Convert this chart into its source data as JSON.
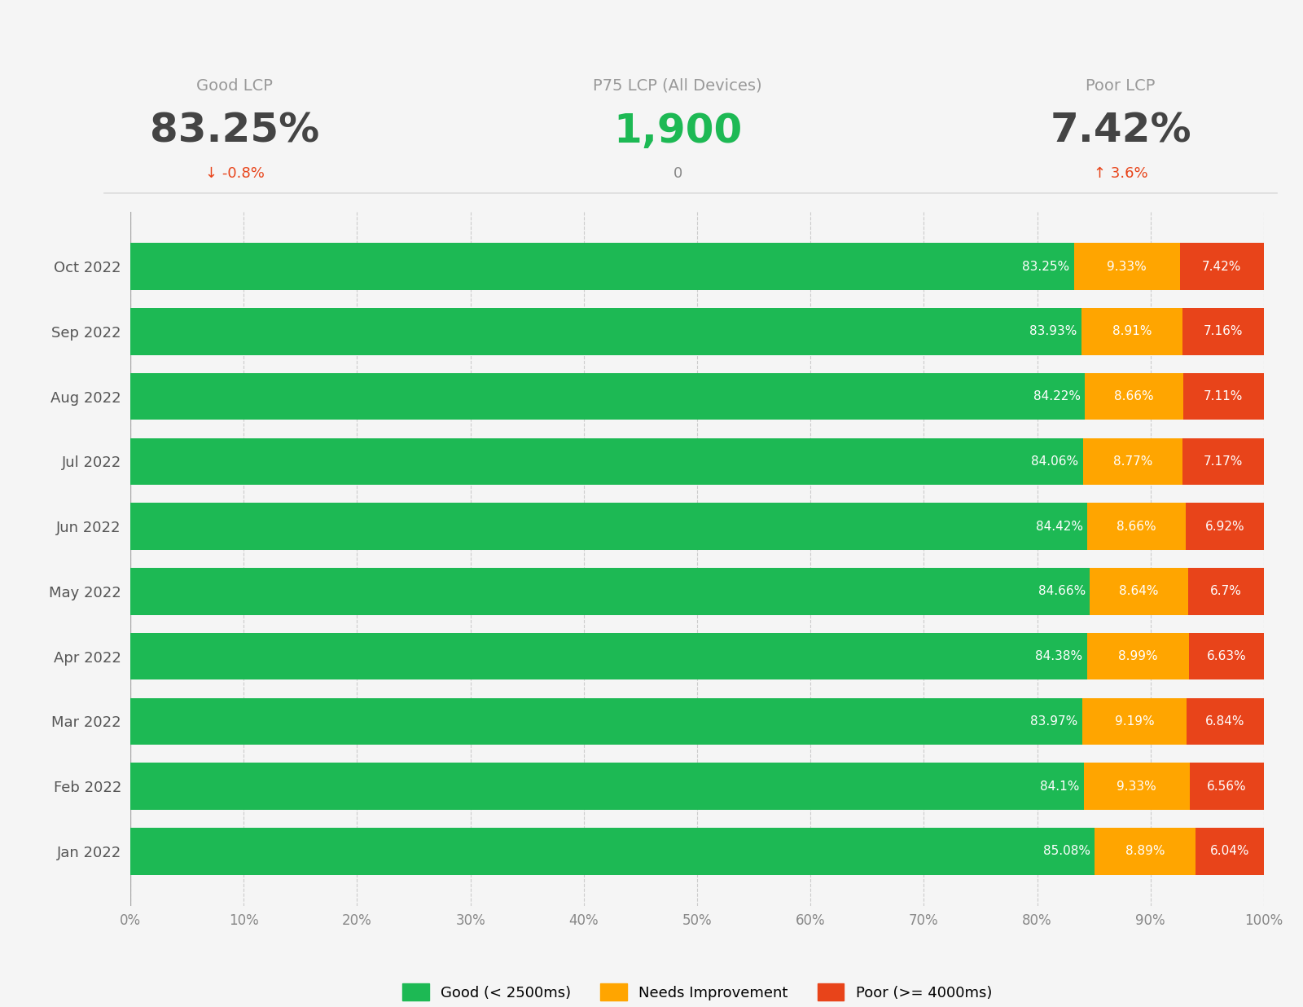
{
  "title_good": "Good LCP",
  "title_p75": "P75 LCP (All Devices)",
  "title_poor": "Poor LCP",
  "value_good": "83.25%",
  "value_p75": "1,900",
  "value_poor": "7.42%",
  "delta_good": "↓ -0.8%",
  "delta_p75": "0",
  "delta_poor": "↑ 3.6%",
  "months": [
    "Oct 2022",
    "Sep 2022",
    "Aug 2022",
    "Jul 2022",
    "Jun 2022",
    "May 2022",
    "Apr 2022",
    "Mar 2022",
    "Feb 2022",
    "Jan 2022"
  ],
  "good_values": [
    83.25,
    83.93,
    84.22,
    84.06,
    84.42,
    84.66,
    84.38,
    83.97,
    84.1,
    85.08
  ],
  "needs_values": [
    9.33,
    8.91,
    8.66,
    8.77,
    8.66,
    8.64,
    8.99,
    9.19,
    9.33,
    8.89
  ],
  "poor_values": [
    7.42,
    7.16,
    7.11,
    7.17,
    6.92,
    6.7,
    6.63,
    6.84,
    6.56,
    6.04
  ],
  "good_labels": [
    "83.25%",
    "83.93%",
    "84.22%",
    "84.06%",
    "84.42%",
    "84.66%",
    "84.38%",
    "83.97%",
    "84.1%",
    "85.08%"
  ],
  "needs_labels": [
    "9.33%",
    "8.91%",
    "8.66%",
    "8.77%",
    "8.66%",
    "8.64%",
    "8.99%",
    "9.19%",
    "9.33%",
    "8.89%"
  ],
  "poor_labels": [
    "7.42%",
    "7.16%",
    "7.11%",
    "7.17%",
    "6.92%",
    "6.7%",
    "6.63%",
    "6.84%",
    "6.56%",
    "6.04%"
  ],
  "color_good": "#1DB954",
  "color_needs": "#FFA500",
  "color_poor": "#E8441A",
  "background_color": "#F5F5F5",
  "legend_good": "Good (< 2500ms)",
  "legend_needs": "Needs Improvement",
  "legend_poor": "Poor (>= 4000ms)",
  "xlabel_ticks": [
    "0%",
    "10%",
    "20%",
    "30%",
    "40%",
    "50%",
    "60%",
    "70%",
    "80%",
    "90%",
    "100%"
  ],
  "xlabel_vals": [
    0,
    10,
    20,
    30,
    40,
    50,
    60,
    70,
    80,
    90,
    100
  ],
  "good_title_color": "#999999",
  "good_value_color": "#444444",
  "poor_title_color": "#999999",
  "poor_value_color": "#444444",
  "p75_title_color": "#999999",
  "p75_value_color": "#1DB954",
  "delta_red_color": "#E8441A",
  "delta_neutral_color": "#888888"
}
